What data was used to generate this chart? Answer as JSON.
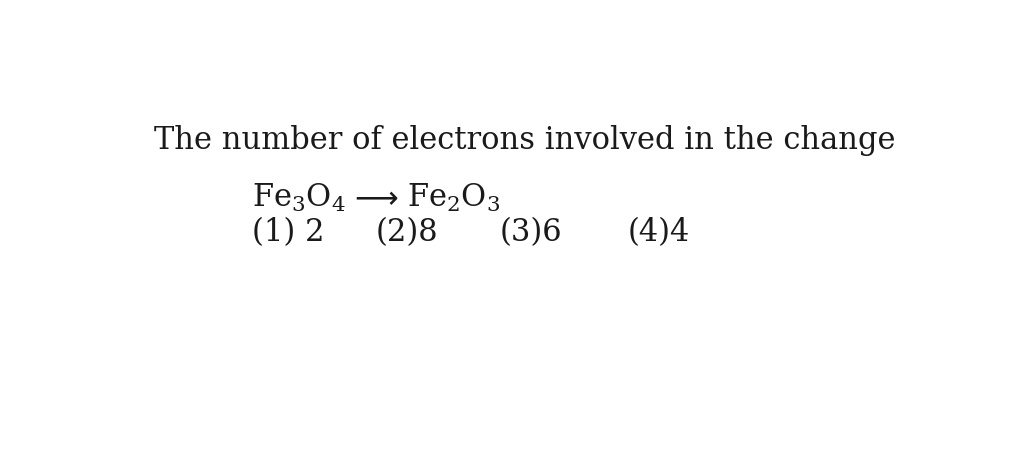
{
  "background_color": "#ffffff",
  "text_color": "#1a1a1a",
  "title_line1": "The number of electrons involved in the change",
  "formula_left": "$\\mathregular{Fe_3O_4}$",
  "formula_arrow": "$\\longrightarrow$",
  "formula_right": "$\\mathregular{Fe_2O_3}$",
  "options": [
    "(1) 2",
    "(2)8",
    "(3)6",
    "(4)4"
  ],
  "figsize": [
    10.24,
    4.69
  ],
  "dpi": 100,
  "font_size_title": 22,
  "font_size_reaction": 22,
  "font_size_options": 22
}
